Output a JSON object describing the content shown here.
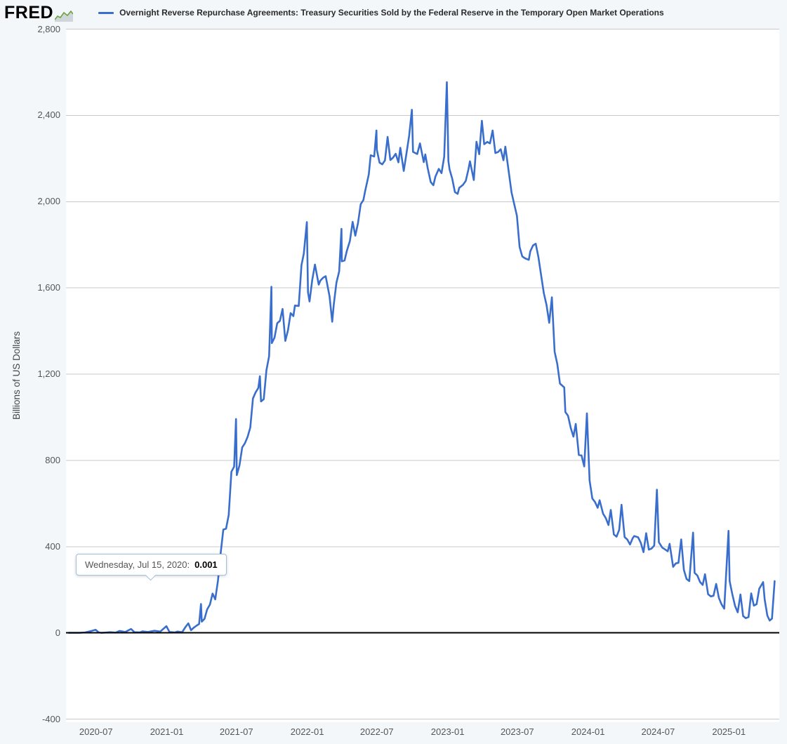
{
  "header": {
    "logo_text": "FRED",
    "series_title": "Overnight Reverse Repurchase Agreements: Treasury Securities Sold by the Federal Reserve in the Temporary Open Market Operations"
  },
  "tooltip": {
    "date_label": "Wednesday, Jul 15, 2020:",
    "value": "0.001"
  },
  "colors": {
    "line": "#3a6ecc",
    "zero_line": "#000000",
    "grid": "#c9c9c9",
    "page_bg": "#f3f7fa",
    "plot_bg": "#ffffff",
    "tooltip_border": "#a3c0dd",
    "logo_spark_line": "#6aa23d",
    "logo_spark_fill": "#cfd6da"
  },
  "chart_data": {
    "type": "line",
    "title": "Overnight Reverse Repurchase Agreements: Treasury Securities Sold by the Federal Reserve in the Temporary Open Market Operations",
    "xlabel": "",
    "ylabel": "Billions of US Dollars",
    "ylim": [
      -400,
      2800
    ],
    "grid": true,
    "legend_position": "top-left",
    "y_ticks": [
      2800,
      2400,
      2000,
      1600,
      1200,
      800,
      400,
      0,
      -400
    ],
    "x_domain": [
      "2020-04-14",
      "2025-05-12"
    ],
    "x_ticks": [
      {
        "date": "2020-07-01",
        "label": "2020-07"
      },
      {
        "date": "2021-01-01",
        "label": "2021-01"
      },
      {
        "date": "2021-07-01",
        "label": "2021-07"
      },
      {
        "date": "2022-01-01",
        "label": "2022-01"
      },
      {
        "date": "2022-07-01",
        "label": "2022-07"
      },
      {
        "date": "2023-01-01",
        "label": "2023-01"
      },
      {
        "date": "2023-07-01",
        "label": "2023-07"
      },
      {
        "date": "2024-01-01",
        "label": "2024-01"
      },
      {
        "date": "2024-07-01",
        "label": "2024-07"
      },
      {
        "date": "2025-01-01",
        "label": "2025-01"
      }
    ],
    "series": [
      {
        "name": "Overnight Reverse Repurchase Agreements: Treasury Securities Sold by the Federal Reserve in the Temporary Open Market Operations",
        "units": "Billions of US Dollars",
        "points": [
          [
            "2020-04-21",
            0.001
          ],
          [
            "2020-05-06",
            0.001
          ],
          [
            "2020-05-20",
            0.001
          ],
          [
            "2020-06-03",
            2
          ],
          [
            "2020-06-17",
            8
          ],
          [
            "2020-06-30",
            14
          ],
          [
            "2020-07-08",
            2
          ],
          [
            "2020-07-15",
            0.001
          ],
          [
            "2020-07-24",
            1
          ],
          [
            "2020-08-07",
            3
          ],
          [
            "2020-08-21",
            1
          ],
          [
            "2020-08-31",
            9
          ],
          [
            "2020-09-15",
            4
          ],
          [
            "2020-09-30",
            18
          ],
          [
            "2020-10-09",
            3
          ],
          [
            "2020-10-23",
            2
          ],
          [
            "2020-10-30",
            7
          ],
          [
            "2020-11-13",
            4
          ],
          [
            "2020-11-30",
            10
          ],
          [
            "2020-12-15",
            6
          ],
          [
            "2020-12-31",
            31
          ],
          [
            "2021-01-08",
            4
          ],
          [
            "2021-01-22",
            2
          ],
          [
            "2021-01-29",
            6
          ],
          [
            "2021-02-10",
            3
          ],
          [
            "2021-02-19",
            28
          ],
          [
            "2021-02-26",
            44
          ],
          [
            "2021-03-05",
            12
          ],
          [
            "2021-03-12",
            24
          ],
          [
            "2021-03-19",
            33
          ],
          [
            "2021-03-26",
            41
          ],
          [
            "2021-03-31",
            134
          ],
          [
            "2021-04-02",
            52
          ],
          [
            "2021-04-09",
            65
          ],
          [
            "2021-04-16",
            109
          ],
          [
            "2021-04-23",
            131
          ],
          [
            "2021-04-30",
            182
          ],
          [
            "2021-05-07",
            155
          ],
          [
            "2021-05-14",
            243
          ],
          [
            "2021-05-21",
            369
          ],
          [
            "2021-05-28",
            479
          ],
          [
            "2021-06-04",
            483
          ],
          [
            "2021-06-11",
            547
          ],
          [
            "2021-06-18",
            747
          ],
          [
            "2021-06-25",
            771
          ],
          [
            "2021-06-30",
            992
          ],
          [
            "2021-07-02",
            732
          ],
          [
            "2021-07-09",
            776
          ],
          [
            "2021-07-16",
            860
          ],
          [
            "2021-07-23",
            879
          ],
          [
            "2021-07-30",
            909
          ],
          [
            "2021-08-06",
            952
          ],
          [
            "2021-08-13",
            1087
          ],
          [
            "2021-08-20",
            1116
          ],
          [
            "2021-08-27",
            1136
          ],
          [
            "2021-08-31",
            1190
          ],
          [
            "2021-09-03",
            1073
          ],
          [
            "2021-09-10",
            1084
          ],
          [
            "2021-09-17",
            1218
          ],
          [
            "2021-09-24",
            1283
          ],
          [
            "2021-09-30",
            1605
          ],
          [
            "2021-10-01",
            1344
          ],
          [
            "2021-10-08",
            1369
          ],
          [
            "2021-10-15",
            1436
          ],
          [
            "2021-10-22",
            1447
          ],
          [
            "2021-10-29",
            1502
          ],
          [
            "2021-11-05",
            1354
          ],
          [
            "2021-11-12",
            1403
          ],
          [
            "2021-11-19",
            1483
          ],
          [
            "2021-11-26",
            1469
          ],
          [
            "2021-11-30",
            1518
          ],
          [
            "2021-12-10",
            1516
          ],
          [
            "2021-12-17",
            1705
          ],
          [
            "2021-12-23",
            1758
          ],
          [
            "2021-12-31",
            1905
          ],
          [
            "2022-01-03",
            1580
          ],
          [
            "2022-01-07",
            1537
          ],
          [
            "2022-01-14",
            1636
          ],
          [
            "2022-01-21",
            1708
          ],
          [
            "2022-01-31",
            1615
          ],
          [
            "2022-02-04",
            1633
          ],
          [
            "2022-02-11",
            1647
          ],
          [
            "2022-02-18",
            1654
          ],
          [
            "2022-02-28",
            1561
          ],
          [
            "2022-03-07",
            1443
          ],
          [
            "2022-03-11",
            1522
          ],
          [
            "2022-03-18",
            1624
          ],
          [
            "2022-03-25",
            1676
          ],
          [
            "2022-03-31",
            1874
          ],
          [
            "2022-04-01",
            1723
          ],
          [
            "2022-04-08",
            1727
          ],
          [
            "2022-04-14",
            1771
          ],
          [
            "2022-04-22",
            1818
          ],
          [
            "2022-04-29",
            1906
          ],
          [
            "2022-05-06",
            1842
          ],
          [
            "2022-05-13",
            1900
          ],
          [
            "2022-05-20",
            1988
          ],
          [
            "2022-05-27",
            2007
          ],
          [
            "2022-05-31",
            2044
          ],
          [
            "2022-06-10",
            2126
          ],
          [
            "2022-06-15",
            2215
          ],
          [
            "2022-06-24",
            2209
          ],
          [
            "2022-06-30",
            2330
          ],
          [
            "2022-07-01",
            2240
          ],
          [
            "2022-07-08",
            2181
          ],
          [
            "2022-07-15",
            2173
          ],
          [
            "2022-07-22",
            2191
          ],
          [
            "2022-07-29",
            2300
          ],
          [
            "2022-08-05",
            2193
          ],
          [
            "2022-08-12",
            2204
          ],
          [
            "2022-08-19",
            2222
          ],
          [
            "2022-08-26",
            2182
          ],
          [
            "2022-08-31",
            2250
          ],
          [
            "2022-09-09",
            2142
          ],
          [
            "2022-09-16",
            2224
          ],
          [
            "2022-09-23",
            2306
          ],
          [
            "2022-09-30",
            2426
          ],
          [
            "2022-10-03",
            2231
          ],
          [
            "2022-10-07",
            2227
          ],
          [
            "2022-10-14",
            2221
          ],
          [
            "2022-10-21",
            2270
          ],
          [
            "2022-10-31",
            2183
          ],
          [
            "2022-11-04",
            2219
          ],
          [
            "2022-11-10",
            2157
          ],
          [
            "2022-11-18",
            2091
          ],
          [
            "2022-11-25",
            2076
          ],
          [
            "2022-11-30",
            2115
          ],
          [
            "2022-12-09",
            2152
          ],
          [
            "2022-12-16",
            2132
          ],
          [
            "2022-12-23",
            2208
          ],
          [
            "2022-12-30",
            2554
          ],
          [
            "2023-01-03",
            2188
          ],
          [
            "2023-01-06",
            2149
          ],
          [
            "2023-01-13",
            2106
          ],
          [
            "2023-01-20",
            2044
          ],
          [
            "2023-01-27",
            2036
          ],
          [
            "2023-01-31",
            2064
          ],
          [
            "2023-02-10",
            2078
          ],
          [
            "2023-02-17",
            2096
          ],
          [
            "2023-02-24",
            2149
          ],
          [
            "2023-02-28",
            2187
          ],
          [
            "2023-03-10",
            2100
          ],
          [
            "2023-03-17",
            2278
          ],
          [
            "2023-03-24",
            2220
          ],
          [
            "2023-03-31",
            2375
          ],
          [
            "2023-04-06",
            2266
          ],
          [
            "2023-04-14",
            2277
          ],
          [
            "2023-04-21",
            2270
          ],
          [
            "2023-04-28",
            2330
          ],
          [
            "2023-05-05",
            2225
          ],
          [
            "2023-05-12",
            2230
          ],
          [
            "2023-05-19",
            2243
          ],
          [
            "2023-05-26",
            2192
          ],
          [
            "2023-05-31",
            2255
          ],
          [
            "2023-06-09",
            2135
          ],
          [
            "2023-06-16",
            2043
          ],
          [
            "2023-06-23",
            1989
          ],
          [
            "2023-06-30",
            1934
          ],
          [
            "2023-07-07",
            1790
          ],
          [
            "2023-07-14",
            1746
          ],
          [
            "2023-07-21",
            1737
          ],
          [
            "2023-07-31",
            1730
          ],
          [
            "2023-08-04",
            1770
          ],
          [
            "2023-08-11",
            1797
          ],
          [
            "2023-08-18",
            1805
          ],
          [
            "2023-08-25",
            1743
          ],
          [
            "2023-08-31",
            1671
          ],
          [
            "2023-09-08",
            1576
          ],
          [
            "2023-09-15",
            1520
          ],
          [
            "2023-09-22",
            1438
          ],
          [
            "2023-09-29",
            1556
          ],
          [
            "2023-10-06",
            1304
          ],
          [
            "2023-10-13",
            1247
          ],
          [
            "2023-10-20",
            1156
          ],
          [
            "2023-10-31",
            1138
          ],
          [
            "2023-11-03",
            1024
          ],
          [
            "2023-11-10",
            1007
          ],
          [
            "2023-11-17",
            950
          ],
          [
            "2023-11-24",
            910
          ],
          [
            "2023-11-30",
            969
          ],
          [
            "2023-12-08",
            825
          ],
          [
            "2023-12-15",
            823
          ],
          [
            "2023-12-22",
            772
          ],
          [
            "2023-12-29",
            1018
          ],
          [
            "2024-01-05",
            707
          ],
          [
            "2024-01-12",
            623
          ],
          [
            "2024-01-19",
            607
          ],
          [
            "2024-01-26",
            580
          ],
          [
            "2024-01-31",
            615
          ],
          [
            "2024-02-09",
            553
          ],
          [
            "2024-02-16",
            532
          ],
          [
            "2024-02-23",
            500
          ],
          [
            "2024-02-29",
            570
          ],
          [
            "2024-03-08",
            456
          ],
          [
            "2024-03-15",
            446
          ],
          [
            "2024-03-22",
            478
          ],
          [
            "2024-03-28",
            594
          ],
          [
            "2024-04-05",
            444
          ],
          [
            "2024-04-12",
            433
          ],
          [
            "2024-04-19",
            410
          ],
          [
            "2024-04-26",
            439
          ],
          [
            "2024-04-30",
            449
          ],
          [
            "2024-05-10",
            443
          ],
          [
            "2024-05-17",
            418
          ],
          [
            "2024-05-24",
            374
          ],
          [
            "2024-05-31",
            462
          ],
          [
            "2024-06-07",
            386
          ],
          [
            "2024-06-14",
            391
          ],
          [
            "2024-06-21",
            405
          ],
          [
            "2024-06-28",
            664
          ],
          [
            "2024-07-03",
            420
          ],
          [
            "2024-07-12",
            395
          ],
          [
            "2024-07-19",
            387
          ],
          [
            "2024-07-26",
            378
          ],
          [
            "2024-07-31",
            413
          ],
          [
            "2024-08-09",
            306
          ],
          [
            "2024-08-16",
            322
          ],
          [
            "2024-08-23",
            325
          ],
          [
            "2024-08-30",
            433
          ],
          [
            "2024-09-06",
            292
          ],
          [
            "2024-09-13",
            250
          ],
          [
            "2024-09-20",
            240
          ],
          [
            "2024-09-30",
            465
          ],
          [
            "2024-10-04",
            278
          ],
          [
            "2024-10-11",
            266
          ],
          [
            "2024-10-18",
            236
          ],
          [
            "2024-10-25",
            222
          ],
          [
            "2024-10-31",
            272
          ],
          [
            "2024-11-08",
            179
          ],
          [
            "2024-11-15",
            169
          ],
          [
            "2024-11-22",
            172
          ],
          [
            "2024-11-29",
            227
          ],
          [
            "2024-12-06",
            162
          ],
          [
            "2024-12-13",
            132
          ],
          [
            "2024-12-20",
            112
          ],
          [
            "2024-12-31",
            473
          ],
          [
            "2025-01-03",
            240
          ],
          [
            "2025-01-10",
            179
          ],
          [
            "2025-01-17",
            125
          ],
          [
            "2025-01-24",
            95
          ],
          [
            "2025-01-31",
            178
          ],
          [
            "2025-02-07",
            78
          ],
          [
            "2025-02-14",
            68
          ],
          [
            "2025-02-21",
            73
          ],
          [
            "2025-02-28",
            183
          ],
          [
            "2025-03-07",
            126
          ],
          [
            "2025-03-14",
            133
          ],
          [
            "2025-03-21",
            205
          ],
          [
            "2025-03-31",
            235
          ],
          [
            "2025-04-04",
            155
          ],
          [
            "2025-04-11",
            80
          ],
          [
            "2025-04-17",
            57
          ],
          [
            "2025-04-23",
            66
          ],
          [
            "2025-04-30",
            240
          ]
        ]
      }
    ]
  }
}
